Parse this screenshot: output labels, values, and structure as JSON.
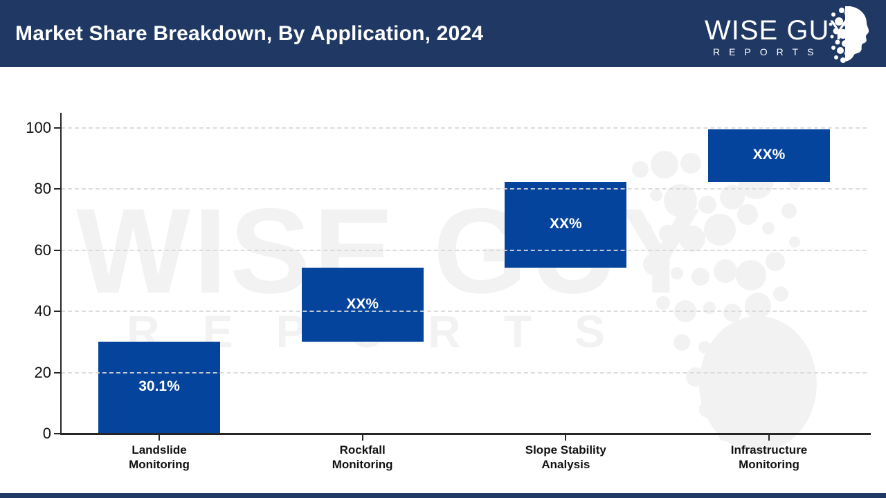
{
  "header": {
    "title": "Market Share Breakdown, By Application, 2024",
    "brand": {
      "name": "WISE GUY",
      "tagline": "REPORTS"
    }
  },
  "watermark": {
    "line1": "WISE GUY",
    "line2": "REPORTS"
  },
  "colors": {
    "header_bg": "#1f3864",
    "bar": "#05449c",
    "axis": "#262626",
    "grid": "#d9d9d9",
    "watermark": "#f2f2f2",
    "label_text": "#ffffff",
    "tick_text": "#111111"
  },
  "chart_data": {
    "type": "bar",
    "subtype": "waterfall",
    "title": "Market Share Breakdown, By Application, 2024",
    "xlabel": "",
    "ylabel": "",
    "ylim": [
      0,
      100
    ],
    "yticks": [
      0,
      20,
      40,
      60,
      80,
      100
    ],
    "grid": "horizontal-dashed-above-bars",
    "legend": "none",
    "categories": [
      "Landslide Monitoring",
      "Rockfall Monitoring",
      "Slope Stability Analysis",
      "Infrastructure Monitoring"
    ],
    "bars": [
      {
        "category": "Landslide Monitoring",
        "lines": [
          "Landslide",
          "Monitoring"
        ],
        "label": "30.1%",
        "start": 0,
        "end": 30.1
      },
      {
        "category": "Rockfall Monitoring",
        "lines": [
          "Rockfall",
          "Monitoring"
        ],
        "label": "XX%",
        "start": 30.1,
        "end": 54.2
      },
      {
        "category": "Slope Stability Analysis",
        "lines": [
          "Slope Stability",
          "Analysis"
        ],
        "label": "XX%",
        "start": 54.2,
        "end": 82.3
      },
      {
        "category": "Infrastructure Monitoring",
        "lines": [
          "Infrastructure",
          "Monitoring"
        ],
        "label": "XX%",
        "start": 82.3,
        "end": 99.5
      }
    ]
  }
}
